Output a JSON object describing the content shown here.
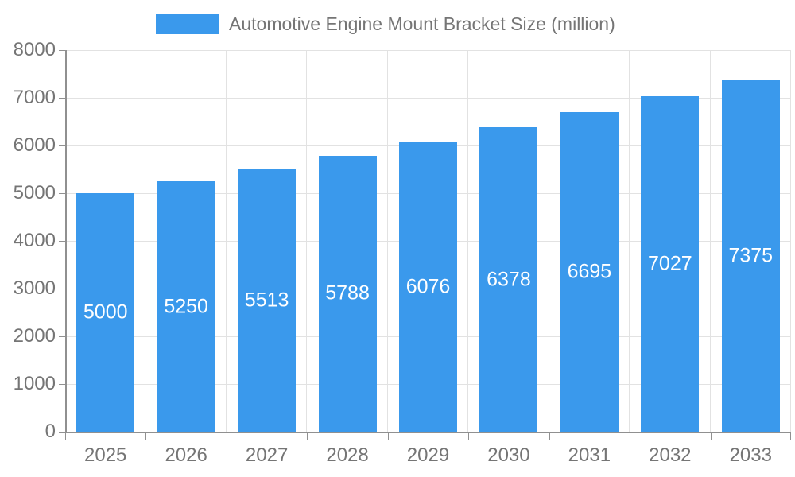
{
  "legend": {
    "label": "Automotive Engine Mount Bracket Size (million)",
    "swatch_color": "#3a99ec"
  },
  "chart_data": {
    "type": "bar",
    "title": "Automotive Engine Mount Bracket Size (million)",
    "categories": [
      "2025",
      "2026",
      "2027",
      "2028",
      "2029",
      "2030",
      "2031",
      "2032",
      "2033"
    ],
    "values": [
      5000,
      5250,
      5513,
      5788,
      6076,
      6378,
      6695,
      7027,
      7375
    ],
    "xlabel": "",
    "ylabel": "",
    "ylim": [
      0,
      8000
    ],
    "ytick_step": 1000,
    "ytick_labels": [
      "0",
      "1000",
      "2000",
      "3000",
      "4000",
      "5000",
      "6000",
      "7000",
      "8000"
    ],
    "grid": true,
    "legend_position": "top",
    "bar_color": "#3a99ec",
    "value_label_color": "#ffffff",
    "axis_text_color": "#757575",
    "gridline_color": "#e2e2e2",
    "axis_line_color": "#909090"
  }
}
